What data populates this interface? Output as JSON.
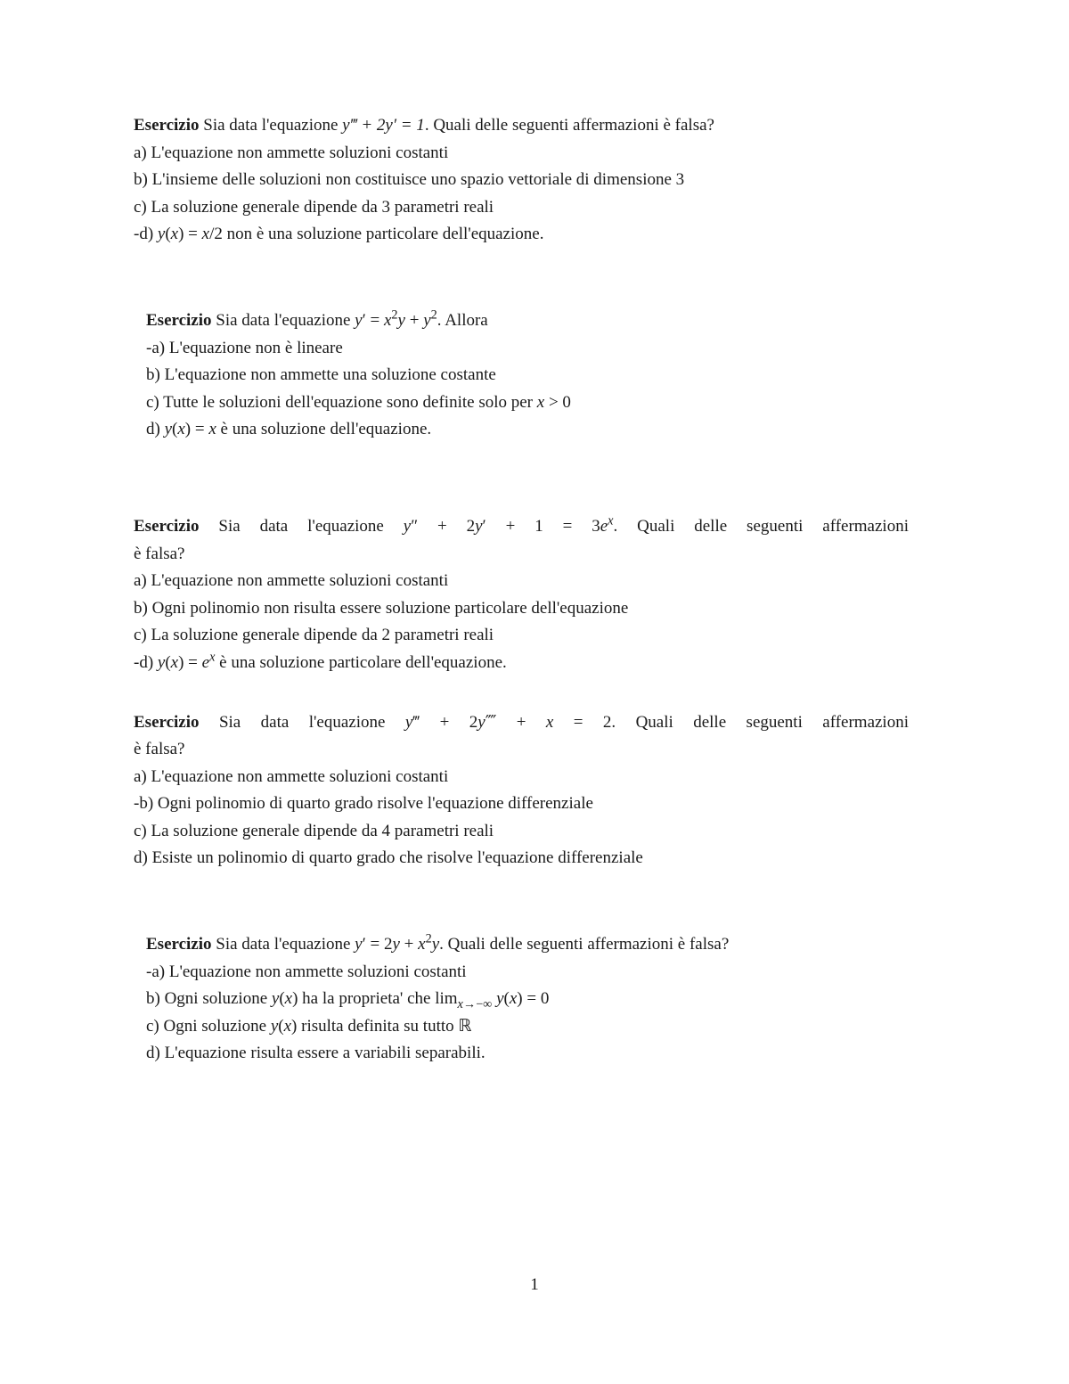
{
  "page": {
    "number": "1",
    "background": "#ffffff",
    "text_color": "#1a1a1a",
    "font_family": "Times New Roman",
    "base_fontsize_pt": 14
  },
  "exercises": [
    {
      "label": "Esercizio",
      "prompt_pre": " Sia data l'equazione ",
      "math": "y‴ + 2y′ = 1",
      "prompt_post": ". Quali delle seguenti affermazioni è falsa?",
      "indent": false,
      "options": [
        {
          "key": "a)",
          "text": " L'equazione non ammette soluzioni costanti",
          "marked": false
        },
        {
          "key": "b)",
          "text": " L'insieme delle soluzioni non costituisce uno spazio vettoriale di dimensione 3",
          "marked": false
        },
        {
          "key": "c)",
          "text": " La soluzione generale dipende da 3 parametri reali",
          "marked": false
        },
        {
          "key": "-d)",
          "text_html": " <span class='math'>y</span>(<span class='math'>x</span>) = <span class='math'>x</span>/2 non è una soluzione particolare dell'equazione.",
          "marked": true
        }
      ],
      "gap_after": 70
    },
    {
      "label": "Esercizio",
      "prompt_pre": " Sia data l'equazione ",
      "math_html": "<span class='math'>y</span>′ = <span class='math'>x</span><span class='sup'>2</span><span class='math'>y</span> + <span class='math'>y</span><span class='sup'>2</span>",
      "prompt_post": ". Allora",
      "indent": true,
      "options": [
        {
          "key": "-a)",
          "text": " L'equazione non è lineare",
          "marked": true
        },
        {
          "key": "b)",
          "text": " L'equazione non ammette una soluzione costante",
          "marked": false
        },
        {
          "key": "c)",
          "text_html": " Tutte le soluzioni dell'equazione sono definite solo per <span class='math'>x</span> &gt; 0",
          "marked": false
        },
        {
          "key": "d)",
          "text_html": " <span class='math'>y</span>(<span class='math'>x</span>) = <span class='math'>x</span> è una soluzione dell'equazione.",
          "marked": false
        }
      ],
      "gap_after": 82
    },
    {
      "label": "Esercizio",
      "prompt_pre": " Sia data l'equazione ",
      "math_html": "<span class='math'>y</span>″ + 2<span class='math'>y</span>′ + 1 = 3<span class='math'>e</span><span class='sup math'>x</span>",
      "prompt_post_justify": ".  Quali delle seguenti affermazioni",
      "prompt_line2": "è falsa?",
      "indent": false,
      "options": [
        {
          "key": "a)",
          "text": " L'equazione non ammette soluzioni costanti",
          "marked": false
        },
        {
          "key": "b)",
          "text": " Ogni polinomio non risulta essere soluzione particolare dell'equazione",
          "marked": false
        },
        {
          "key": "c)",
          "text": " La soluzione generale dipende da 2 parametri reali",
          "marked": false
        },
        {
          "key": "-d)",
          "text_html": " <span class='math'>y</span>(<span class='math'>x</span>) = <span class='math'>e</span><span class='sup math'>x</span> è una soluzione particolare dell'equazione.",
          "marked": true
        }
      ],
      "gap_after": 40
    },
    {
      "label": "Esercizio",
      "prompt_pre": " Sia data l'equazione ",
      "math_html": "<span class='math'>y</span>‴ + 2<span class='math'>y</span>⁗ + <span class='math'>x</span> = 2",
      "prompt_post_justify": ".  Quali delle seguenti affermazioni",
      "prompt_line2": "è falsa?",
      "indent": false,
      "options": [
        {
          "key": "a)",
          "text": " L'equazione non ammette soluzioni costanti",
          "marked": false
        },
        {
          "key": "-b)",
          "text": " Ogni polinomio di quarto grado risolve l'equazione differenziale",
          "marked": true
        },
        {
          "key": "c)",
          "text": " La soluzione generale dipende da 4 parametri reali",
          "marked": false
        },
        {
          "key": "d)",
          "text": " Esiste un polinomio di quarto grado che risolve l'equazione differenziale",
          "marked": false
        }
      ],
      "gap_after": 70
    },
    {
      "label": "Esercizio",
      "prompt_pre": " Sia data l'equazione ",
      "math_html": "<span class='math'>y</span>′ = 2<span class='math'>y</span> + <span class='math'>x</span><span class='sup'>2</span><span class='math'>y</span>",
      "prompt_post": ". Quali delle seguenti affermazioni è falsa?",
      "indent": true,
      "options": [
        {
          "key": "-a)",
          "text": " L'equazione non ammette soluzioni costanti",
          "marked": true
        },
        {
          "key": "b)",
          "text_html": " Ogni soluzione <span class='math'>y</span>(<span class='math'>x</span>) ha la proprieta' che lim<span class='sub'><span class='math'>x</span>→−∞</span> <span class='math'>y</span>(<span class='math'>x</span>) = 0",
          "marked": false
        },
        {
          "key": "c)",
          "text_html": " Ogni soluzione <span class='math'>y</span>(<span class='math'>x</span>) risulta definita su tutto <span class='bb'>ℝ</span>",
          "marked": false
        },
        {
          "key": "d)",
          "text": " L'equazione risulta essere a variabili separabili.",
          "marked": false
        }
      ],
      "gap_after": 0
    }
  ]
}
